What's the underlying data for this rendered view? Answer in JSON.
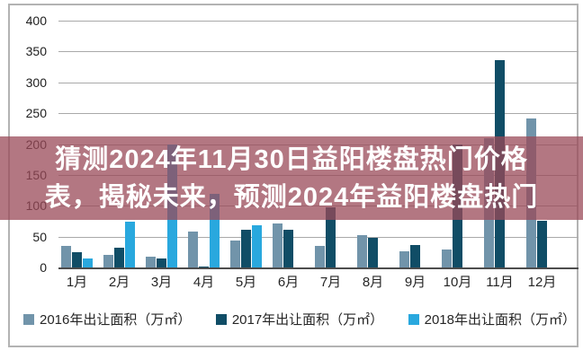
{
  "banner": {
    "line1": "猜测2024年11月30日益阳楼盘热门价格",
    "line2": "表，揭秘未来，预测2024年益阳楼盘热门",
    "full_title": "猜测2024年11月30日益阳楼盘热门价格表，揭秘未来，预测2024年益阳楼盘热门",
    "bg_color": "rgba(154,74,88,0.75)",
    "text_color": "#ffffff"
  },
  "chart_data": {
    "type": "bar",
    "categories": [
      "1月",
      "2月",
      "3月",
      "4月",
      "5月",
      "6月",
      "7月",
      "8月",
      "9月",
      "10月",
      "11月",
      "12月"
    ],
    "series": [
      {
        "name": "2016年出让面积（万㎡）",
        "color": "#7194AA",
        "values": [
          35,
          21,
          17,
          58,
          43,
          72,
          35,
          53,
          26,
          29,
          210,
          242
        ]
      },
      {
        "name": "2017年出让面积（万㎡）",
        "color": "#104D66",
        "values": [
          25,
          32,
          14,
          2,
          61,
          61,
          98,
          48,
          37,
          200,
          336,
          75
        ]
      },
      {
        "name": "2018年出让面积（万㎡）",
        "color": "#29A8DE",
        "values": [
          15,
          74,
          200,
          120,
          68,
          0,
          0,
          0,
          0,
          0,
          0,
          0
        ]
      }
    ],
    "title": "",
    "xlabel": "",
    "ylabel": "",
    "ylim": [
      0,
      400
    ],
    "ytick_step": 50,
    "grid": true,
    "legend_position": "bottom",
    "gridline_color": "#a9a9a9",
    "axis_text_color": "#262626"
  }
}
